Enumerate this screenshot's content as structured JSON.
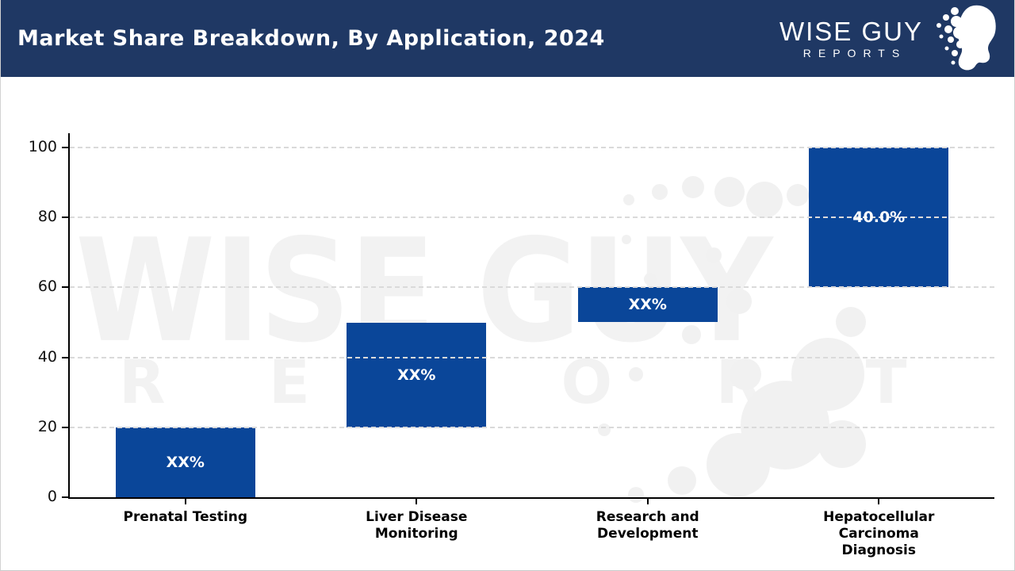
{
  "header": {
    "title": "Market Share Breakdown, By Application, 2024",
    "logo": {
      "line1": "WISE GUY",
      "line2": "REPORTS"
    },
    "bg_color": "#1f3864"
  },
  "watermark": {
    "line1": "WISE GUY",
    "line2": "R E P O R T S"
  },
  "chart_data": {
    "type": "bar",
    "subtype": "waterfall",
    "title": "Market Share Breakdown, By Application, 2024",
    "xlabel": "",
    "ylabel": "",
    "ylim": [
      0,
      100
    ],
    "yticks": [
      0,
      20,
      40,
      60,
      80,
      100
    ],
    "grid": true,
    "categories": [
      "Prenatal Testing",
      "Liver Disease\nMonitoring",
      "Research and\nDevelopment",
      "Hepatocellular\nCarcinoma\nDiagnosis"
    ],
    "series": [
      {
        "name": "Market Share",
        "segments": [
          {
            "category": "Prenatal Testing",
            "start": 0,
            "end": 20,
            "label": "XX%"
          },
          {
            "category": "Liver Disease Monitoring",
            "start": 20,
            "end": 50,
            "label": "XX%"
          },
          {
            "category": "Research and Development",
            "start": 50,
            "end": 60,
            "label": "XX%"
          },
          {
            "category": "Hepatocellular Carcinoma Diagnosis",
            "start": 60,
            "end": 100,
            "label": "40.0%"
          }
        ]
      }
    ],
    "bar_color": "#0a4699",
    "bar_label_color": "#ffffff",
    "axis_color": "#000000",
    "gridline_color": "#dadada"
  }
}
